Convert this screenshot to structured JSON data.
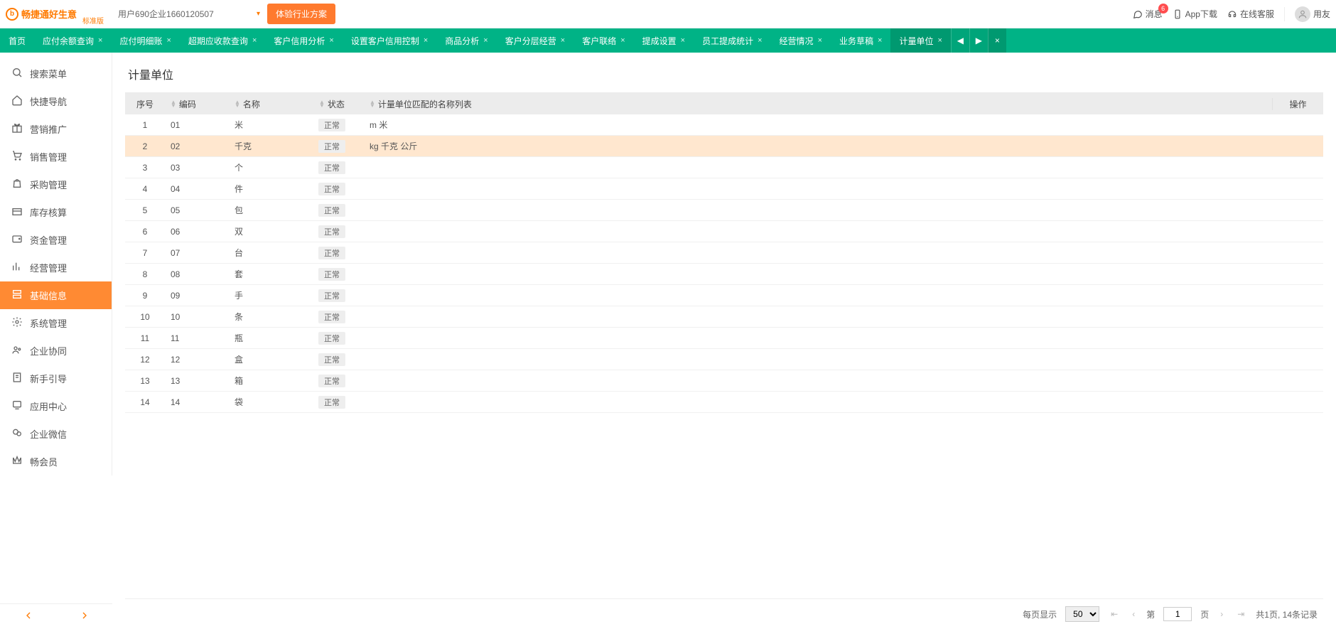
{
  "colors": {
    "accent": "#ff7a2e",
    "tabbar": "#00b386",
    "tabActive": "#009970",
    "rowHover": "#ffe7cf"
  },
  "header": {
    "logoText": "畅捷通好生意",
    "logoSub": "标准版",
    "company": "用户690企业1660120507",
    "tryBtn": "体验行业方案",
    "msgLabel": "消息",
    "msgBadge": "6",
    "appDownload": "App下载",
    "onlineService": "在线客服",
    "userName": "用友"
  },
  "tabs": [
    {
      "label": "首页",
      "closable": false
    },
    {
      "label": "应付余额查询",
      "closable": true
    },
    {
      "label": "应付明细账",
      "closable": true
    },
    {
      "label": "超期应收款查询",
      "closable": true
    },
    {
      "label": "客户信用分析",
      "closable": true
    },
    {
      "label": "设置客户信用控制",
      "closable": true
    },
    {
      "label": "商品分析",
      "closable": true
    },
    {
      "label": "客户分层经营",
      "closable": true
    },
    {
      "label": "客户联络",
      "closable": true
    },
    {
      "label": "提成设置",
      "closable": true
    },
    {
      "label": "员工提成统计",
      "closable": true
    },
    {
      "label": "经营情况",
      "closable": true
    },
    {
      "label": "业务草稿",
      "closable": true
    },
    {
      "label": "计量单位",
      "closable": true,
      "active": true
    }
  ],
  "sidebar": [
    {
      "label": "搜索菜单",
      "icon": "search"
    },
    {
      "label": "快捷导航",
      "icon": "home"
    },
    {
      "label": "营销推广",
      "icon": "gift"
    },
    {
      "label": "销售管理",
      "icon": "cart"
    },
    {
      "label": "采购管理",
      "icon": "bag"
    },
    {
      "label": "库存核算",
      "icon": "box"
    },
    {
      "label": "资金管理",
      "icon": "wallet"
    },
    {
      "label": "经营管理",
      "icon": "chart"
    },
    {
      "label": "基础信息",
      "icon": "db",
      "active": true
    },
    {
      "label": "系统管理",
      "icon": "gear"
    },
    {
      "label": "企业协同",
      "icon": "team"
    },
    {
      "label": "新手引导",
      "icon": "guide"
    },
    {
      "label": "应用中心",
      "icon": "app"
    },
    {
      "label": "企业微信",
      "icon": "wechat"
    },
    {
      "label": "畅会员",
      "icon": "vip"
    }
  ],
  "page": {
    "title": "计量单位"
  },
  "columns": {
    "seq": "序号",
    "code": "编码",
    "name": "名称",
    "status": "状态",
    "match": "计量单位匹配的名称列表",
    "op": "操作"
  },
  "rows": [
    {
      "seq": "1",
      "code": "01",
      "name": "米",
      "status": "正常",
      "match": "m 米"
    },
    {
      "seq": "2",
      "code": "02",
      "name": "千克",
      "status": "正常",
      "match": "kg 千克 公斤",
      "hover": true
    },
    {
      "seq": "3",
      "code": "03",
      "name": "个",
      "status": "正常",
      "match": ""
    },
    {
      "seq": "4",
      "code": "04",
      "name": "件",
      "status": "正常",
      "match": ""
    },
    {
      "seq": "5",
      "code": "05",
      "name": "包",
      "status": "正常",
      "match": ""
    },
    {
      "seq": "6",
      "code": "06",
      "name": "双",
      "status": "正常",
      "match": ""
    },
    {
      "seq": "7",
      "code": "07",
      "name": "台",
      "status": "正常",
      "match": ""
    },
    {
      "seq": "8",
      "code": "08",
      "name": "套",
      "status": "正常",
      "match": ""
    },
    {
      "seq": "9",
      "code": "09",
      "name": "手",
      "status": "正常",
      "match": ""
    },
    {
      "seq": "10",
      "code": "10",
      "name": "条",
      "status": "正常",
      "match": ""
    },
    {
      "seq": "11",
      "code": "11",
      "name": "瓶",
      "status": "正常",
      "match": ""
    },
    {
      "seq": "12",
      "code": "12",
      "name": "盒",
      "status": "正常",
      "match": ""
    },
    {
      "seq": "13",
      "code": "13",
      "name": "箱",
      "status": "正常",
      "match": ""
    },
    {
      "seq": "14",
      "code": "14",
      "name": "袋",
      "status": "正常",
      "match": ""
    }
  ],
  "pager": {
    "perPageLabel": "每页显示",
    "perPage": "50",
    "pagePrefix": "第",
    "pageValue": "1",
    "pageSuffix": "页",
    "summary": "共1页, 14条记录"
  }
}
